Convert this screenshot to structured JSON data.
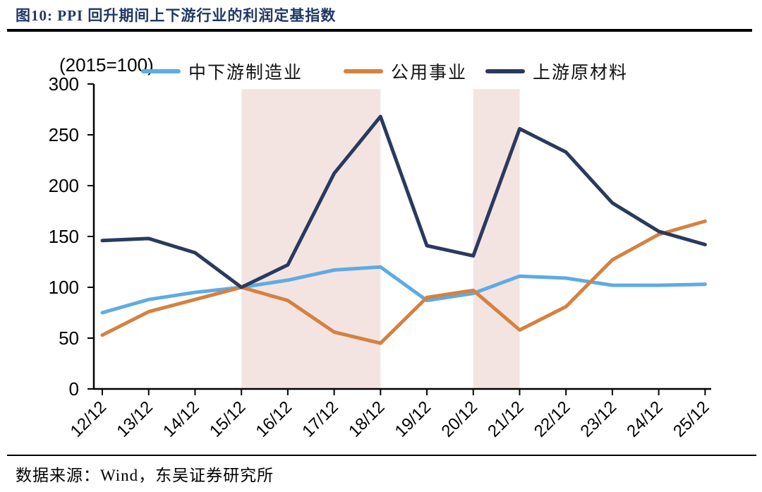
{
  "header": {
    "title": "图10:  PPI 回升期间上下游行业的利润定基指数"
  },
  "chart_data": {
    "type": "line",
    "title": "PPI 回升期间上下游行业的利润定基指数",
    "axis_note": "(2015=100)",
    "x_labels": [
      "12/12",
      "13/12",
      "14/12",
      "15/12",
      "16/12",
      "17/12",
      "18/12",
      "19/12",
      "20/12",
      "21/12",
      "22/12",
      "23/12",
      "24/12",
      "25/12"
    ],
    "ylim": [
      0,
      300
    ],
    "yticks": [
      0,
      50,
      100,
      150,
      200,
      250,
      300
    ],
    "legend_position": "top",
    "grid": false,
    "series": [
      {
        "name": "中下游制造业",
        "color": "#5FABE3",
        "values": [
          75,
          88,
          95,
          100,
          107,
          117,
          120,
          87,
          94,
          111,
          109,
          102,
          102,
          103
        ]
      },
      {
        "name": "公用事业",
        "color": "#D6813F",
        "values": [
          53,
          76,
          88,
          100,
          87,
          56,
          45,
          90,
          97,
          58,
          81,
          127,
          152,
          165
        ]
      },
      {
        "name": "上游原材料",
        "color": "#2A3A5E",
        "values": [
          146,
          148,
          134,
          100,
          122,
          212,
          268,
          141,
          131,
          256,
          233,
          183,
          155,
          142
        ]
      }
    ],
    "shaded_bands": [
      {
        "from": "15/12",
        "to": "18/12"
      },
      {
        "from": "20/12",
        "to": "21/12"
      }
    ],
    "band_color": "#F3E4E2",
    "band_top_value": 295
  },
  "footer": {
    "source_label": "数据来源：Wind，东吴证券研究所"
  }
}
